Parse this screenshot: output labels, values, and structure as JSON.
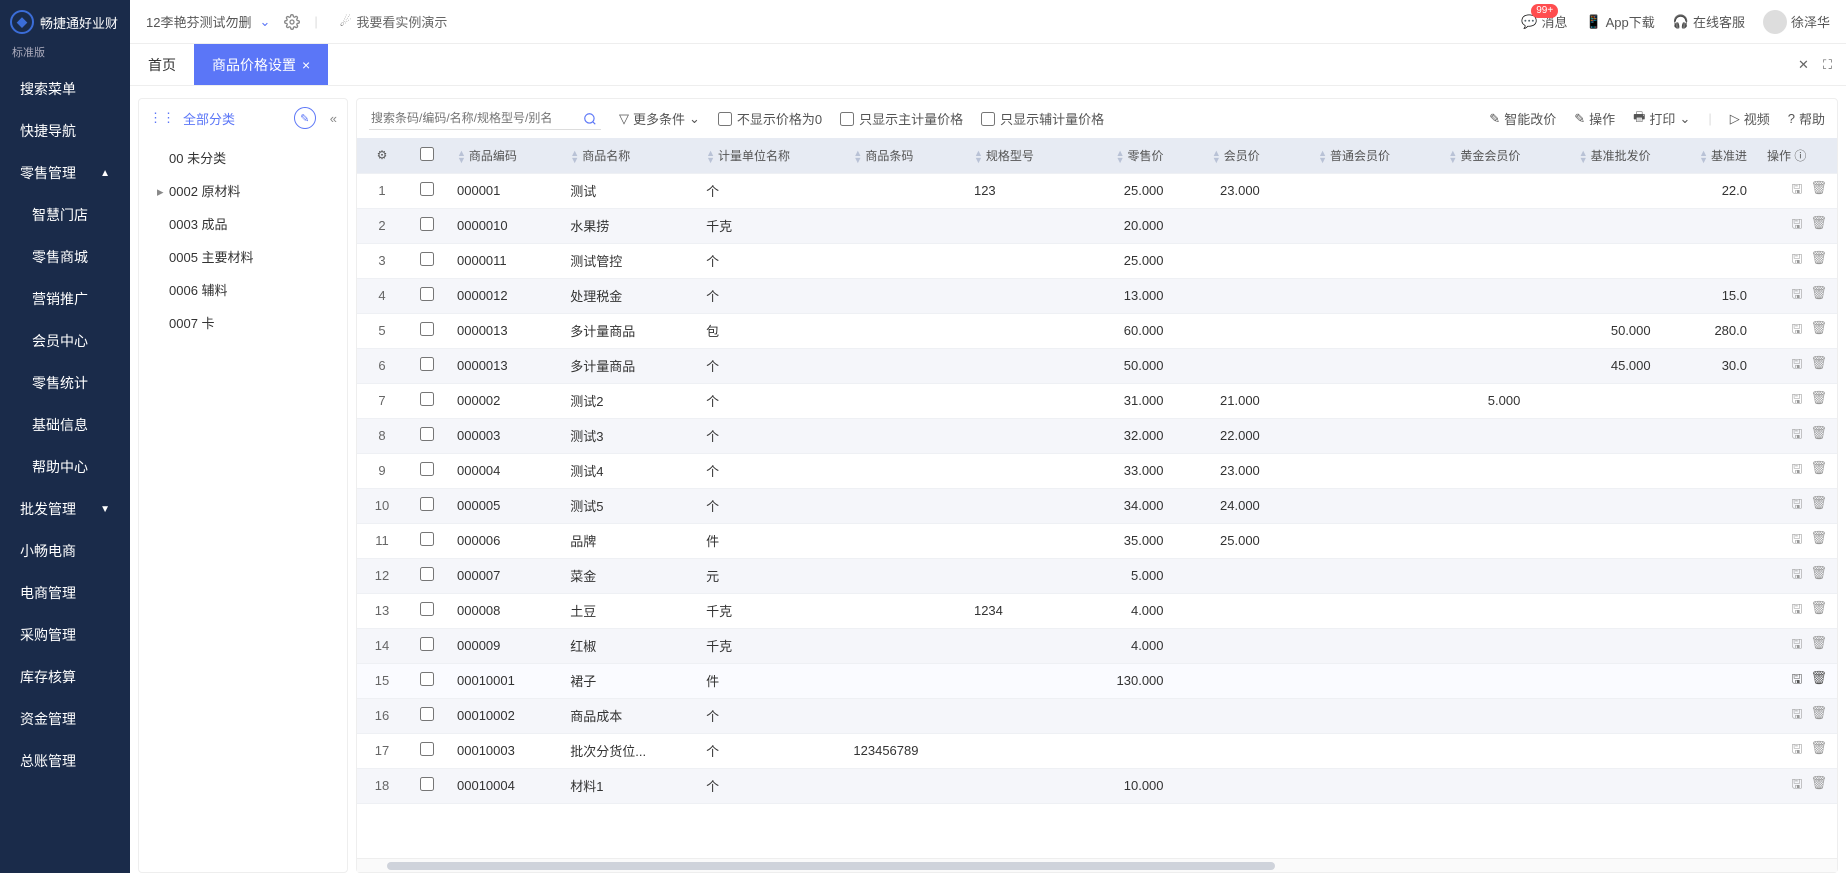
{
  "brand": {
    "name": "畅捷通好业财",
    "edition": "标准版"
  },
  "topbar": {
    "org": "12李艳芬测试勿删",
    "demo": "我要看实例演示",
    "msg": "消息",
    "msg_badge": "99+",
    "app": "App下载",
    "cs": "在线客服",
    "user": "徐泽华"
  },
  "tabs": {
    "home": "首页",
    "active": "商品价格设置"
  },
  "sidebar": {
    "search": "搜索菜单",
    "quick": "快捷导航",
    "retail": "零售管理",
    "retail_sub": [
      "智慧门店",
      "零售商城",
      "营销推广",
      "会员中心",
      "零售统计",
      "基础信息",
      "帮助中心"
    ],
    "rest": [
      "批发管理",
      "小畅电商",
      "电商管理",
      "采购管理",
      "库存核算",
      "资金管理",
      "总账管理"
    ]
  },
  "cat": {
    "all": "全部分类",
    "items": [
      {
        "label": "00 未分类",
        "exp": false
      },
      {
        "label": "0002 原材料",
        "exp": true
      },
      {
        "label": "0003 成品",
        "exp": false
      },
      {
        "label": "0005 主要材料",
        "exp": false
      },
      {
        "label": "0006 辅料",
        "exp": false
      },
      {
        "label": "0007 卡",
        "exp": false
      }
    ]
  },
  "toolbar": {
    "search_ph": "搜索条码/编码/名称/规格型号/别名",
    "more": "更多条件",
    "chk0": "不显示价格为0",
    "chk1": "只显示主计量价格",
    "chk2": "只显示辅计量价格",
    "smart": "智能改价",
    "op": "操作",
    "print": "打印",
    "video": "视频",
    "help": "帮助"
  },
  "cols": [
    "",
    "",
    "商品编码",
    "商品名称",
    "计量单位名称",
    "商品条码",
    "规格型号",
    "零售价",
    "会员价",
    "普通会员价",
    "黄金会员价",
    "基准批发价",
    "基准进",
    "操作"
  ],
  "rows": [
    {
      "i": 1,
      "code": "000001",
      "name": "测试",
      "unit": "个",
      "bar": "",
      "spec": "123",
      "retail": "25.000",
      "member": "23.000",
      "normal": "",
      "gold": "",
      "whole": "",
      "base": "22.0"
    },
    {
      "i": 2,
      "code": "0000010",
      "name": "水果捞",
      "unit": "千克",
      "bar": "",
      "spec": "",
      "retail": "20.000",
      "member": "",
      "normal": "",
      "gold": "",
      "whole": "",
      "base": ""
    },
    {
      "i": 3,
      "code": "0000011",
      "name": "测试管控",
      "unit": "个",
      "bar": "",
      "spec": "",
      "retail": "25.000",
      "member": "",
      "normal": "",
      "gold": "",
      "whole": "",
      "base": ""
    },
    {
      "i": 4,
      "code": "0000012",
      "name": "处理税金",
      "unit": "个",
      "bar": "",
      "spec": "",
      "retail": "13.000",
      "member": "",
      "normal": "",
      "gold": "",
      "whole": "",
      "base": "15.0"
    },
    {
      "i": 5,
      "code": "0000013",
      "name": "多计量商品",
      "unit": "包",
      "bar": "",
      "spec": "",
      "retail": "60.000",
      "member": "",
      "normal": "",
      "gold": "",
      "whole": "50.000",
      "base": "280.0"
    },
    {
      "i": 6,
      "code": "0000013",
      "name": "多计量商品",
      "unit": "个",
      "bar": "",
      "spec": "",
      "retail": "50.000",
      "member": "",
      "normal": "",
      "gold": "",
      "whole": "45.000",
      "base": "30.0"
    },
    {
      "i": 7,
      "code": "000002",
      "name": "测试2",
      "unit": "个",
      "bar": "",
      "spec": "",
      "retail": "31.000",
      "member": "21.000",
      "normal": "",
      "gold": "5.000",
      "whole": "",
      "base": ""
    },
    {
      "i": 8,
      "code": "000003",
      "name": "测试3",
      "unit": "个",
      "bar": "",
      "spec": "",
      "retail": "32.000",
      "member": "22.000",
      "normal": "",
      "gold": "",
      "whole": "",
      "base": ""
    },
    {
      "i": 9,
      "code": "000004",
      "name": "测试4",
      "unit": "个",
      "bar": "",
      "spec": "",
      "retail": "33.000",
      "member": "23.000",
      "normal": "",
      "gold": "",
      "whole": "",
      "base": ""
    },
    {
      "i": 10,
      "code": "000005",
      "name": "测试5",
      "unit": "个",
      "bar": "",
      "spec": "",
      "retail": "34.000",
      "member": "24.000",
      "normal": "",
      "gold": "",
      "whole": "",
      "base": ""
    },
    {
      "i": 11,
      "code": "000006",
      "name": "品牌",
      "unit": "件",
      "bar": "",
      "spec": "",
      "retail": "35.000",
      "member": "25.000",
      "normal": "",
      "gold": "",
      "whole": "",
      "base": ""
    },
    {
      "i": 12,
      "code": "000007",
      "name": "菜金",
      "unit": "元",
      "bar": "",
      "spec": "",
      "retail": "5.000",
      "member": "",
      "normal": "",
      "gold": "",
      "whole": "",
      "base": ""
    },
    {
      "i": 13,
      "code": "000008",
      "name": "土豆",
      "unit": "千克",
      "bar": "",
      "spec": "1234",
      "retail": "4.000",
      "member": "",
      "normal": "",
      "gold": "",
      "whole": "",
      "base": ""
    },
    {
      "i": 14,
      "code": "000009",
      "name": "红椒",
      "unit": "千克",
      "bar": "",
      "spec": "",
      "retail": "4.000",
      "member": "",
      "normal": "",
      "gold": "",
      "whole": "",
      "base": ""
    },
    {
      "i": 15,
      "code": "00010001",
      "name": "裙子",
      "unit": "件",
      "bar": "",
      "spec": "",
      "retail": "130.000",
      "member": "",
      "normal": "",
      "gold": "",
      "whole": "",
      "base": "",
      "hover": true
    },
    {
      "i": 16,
      "code": "00010002",
      "name": "商品成本",
      "unit": "个",
      "bar": "",
      "spec": "",
      "retail": "",
      "member": "",
      "normal": "",
      "gold": "",
      "whole": "",
      "base": ""
    },
    {
      "i": 17,
      "code": "00010003",
      "name": "批次分货位...",
      "unit": "个",
      "bar": "123456789",
      "spec": "",
      "retail": "",
      "member": "",
      "normal": "",
      "gold": "",
      "whole": "",
      "base": ""
    },
    {
      "i": 18,
      "code": "00010004",
      "name": "材料1",
      "unit": "个",
      "bar": "",
      "spec": "",
      "retail": "10.000",
      "member": "",
      "normal": "",
      "gold": "",
      "whole": "",
      "base": ""
    }
  ]
}
